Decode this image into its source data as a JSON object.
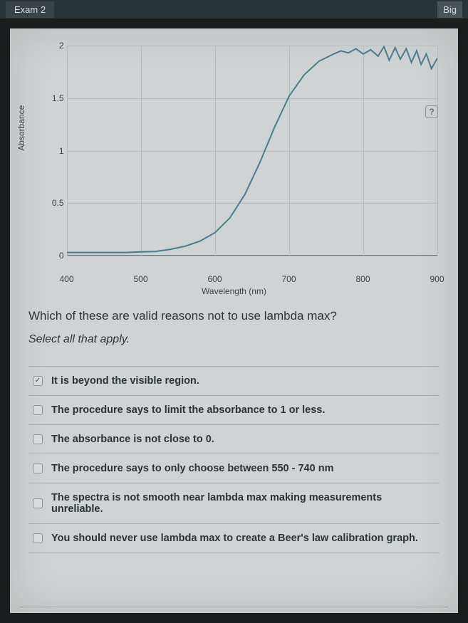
{
  "header": {
    "tab_title": "Exam 2",
    "right_label": "Big"
  },
  "chart": {
    "type": "line",
    "ylabel": "Absorbance",
    "xlabel": "Wavelength (nm)",
    "xmin": 400,
    "xmax": 900,
    "ymin": 0,
    "ymax": 2,
    "xticks": [
      400,
      500,
      600,
      700,
      800,
      900
    ],
    "yticks": [
      0,
      0.5,
      1,
      1.5,
      2
    ],
    "line_color": "#4a7c8c",
    "line_width": 2,
    "background_color": "#cfd3d3",
    "grid_color": "#b5bbbb",
    "axis_color": "#6a7577",
    "label_fontsize": 12,
    "tick_fontsize": 12,
    "data_points": [
      [
        400,
        0.03
      ],
      [
        420,
        0.03
      ],
      [
        440,
        0.03
      ],
      [
        460,
        0.03
      ],
      [
        480,
        0.03
      ],
      [
        500,
        0.035
      ],
      [
        520,
        0.04
      ],
      [
        540,
        0.06
      ],
      [
        560,
        0.09
      ],
      [
        580,
        0.14
      ],
      [
        600,
        0.22
      ],
      [
        620,
        0.36
      ],
      [
        640,
        0.58
      ],
      [
        660,
        0.88
      ],
      [
        680,
        1.22
      ],
      [
        700,
        1.52
      ],
      [
        720,
        1.72
      ],
      [
        740,
        1.85
      ],
      [
        760,
        1.92
      ],
      [
        770,
        1.95
      ],
      [
        780,
        1.93
      ],
      [
        790,
        1.97
      ],
      [
        800,
        1.92
      ],
      [
        810,
        1.96
      ],
      [
        820,
        1.9
      ],
      [
        828,
        1.99
      ],
      [
        835,
        1.86
      ],
      [
        843,
        1.98
      ],
      [
        850,
        1.87
      ],
      [
        858,
        1.97
      ],
      [
        865,
        1.84
      ],
      [
        872,
        1.95
      ],
      [
        878,
        1.82
      ],
      [
        885,
        1.92
      ],
      [
        892,
        1.78
      ],
      [
        900,
        1.88
      ]
    ]
  },
  "question": {
    "text": "Which of these are valid reasons not to use lambda max?",
    "instruction": "Select all that apply.",
    "options": [
      {
        "text": "It is beyond the visible region.",
        "checked": true
      },
      {
        "text": "The procedure says to limit the absorbance to 1 or less.",
        "checked": false
      },
      {
        "text": "The absorbance is not close to 0.",
        "checked": false
      },
      {
        "text": "The procedure says to only choose between 550 - 740 nm",
        "checked": false
      },
      {
        "text": "The spectra is not smooth near lambda max making measurements unreliable.",
        "checked": false
      },
      {
        "text": "You should never use lambda max to create a Beer's law calibration graph.",
        "checked": false
      }
    ]
  },
  "help_icon": "?"
}
